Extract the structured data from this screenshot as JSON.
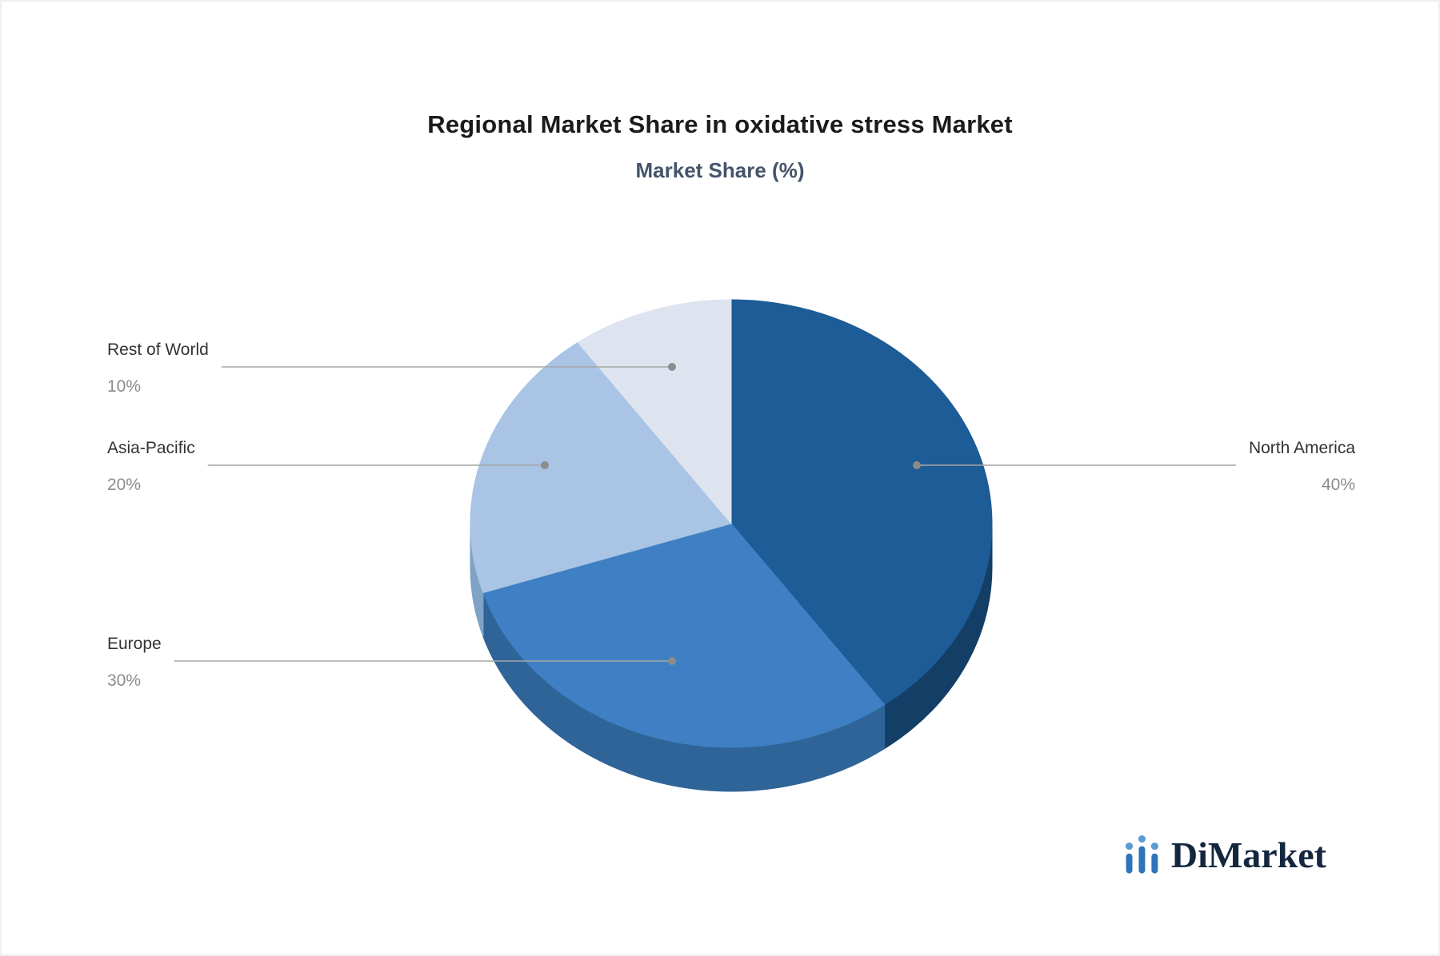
{
  "chart_data": {
    "type": "pie",
    "style": "3d",
    "title": "Regional Market Share in oxidative stress Market",
    "subtitle": "Market Share (%)",
    "unit": "%",
    "categories": [
      "North America",
      "Europe",
      "Asia-Pacific",
      "Rest of World"
    ],
    "values": [
      40,
      30,
      20,
      10
    ],
    "display_values": [
      "40%",
      "30%",
      "20%",
      "10%"
    ],
    "slice_colors": [
      "#1d5c97",
      "#3f80c4",
      "#a9c4e4",
      "#dde4ef"
    ],
    "slice_side_colors": [
      "#133e66",
      "#2f6499",
      "#7fa3c6",
      "#b9c4d6"
    ],
    "start_angle_deg": 0,
    "direction": "clockwise",
    "legend_position": "none",
    "labels_layout": "callout-leader-lines",
    "label_style": {
      "name_color": "#333333",
      "value_color": "#8c8c8c",
      "leader_line_color": "#a6a6a6",
      "leader_dot_color": "#8c8c8c"
    }
  },
  "branding": {
    "logo_text": "DiMarket",
    "logo_icon": "bar-chart-icon",
    "logo_text_color": "#14273f",
    "logo_icon_bar_color": "#2e74b8",
    "logo_icon_dot_color": "#5b9bd5"
  }
}
